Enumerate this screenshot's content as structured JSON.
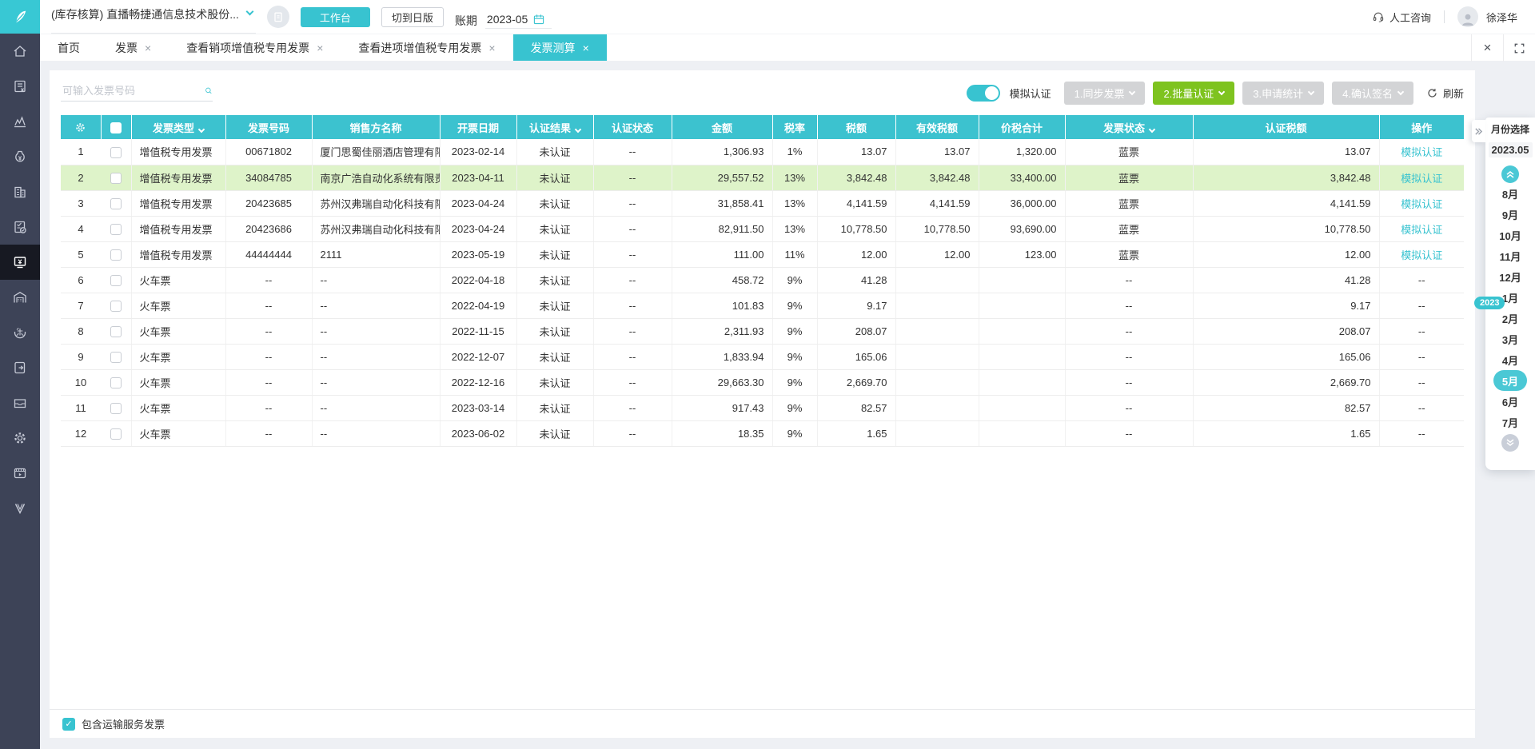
{
  "colors": {
    "primary": "#38c3d0",
    "green_button": "#7ec31f",
    "row_highlight": "#def3c9",
    "sidebar": "#3d4357"
  },
  "topbar": {
    "company": "(库存核算) 直播畅捷通信息技术股份...",
    "workbench": "工作台",
    "switch_version": "切到日版",
    "period_label": "账期",
    "period_value": "2023-05",
    "support": "人工咨询",
    "username": "徐泽华"
  },
  "tabs": [
    {
      "label": "首页",
      "closable": false,
      "active": false
    },
    {
      "label": "发票",
      "closable": true,
      "active": false
    },
    {
      "label": "查看销项增值税专用发票",
      "closable": true,
      "active": false
    },
    {
      "label": "查看进项增值税专用发票",
      "closable": true,
      "active": false
    },
    {
      "label": "发票测算",
      "closable": true,
      "active": true
    }
  ],
  "sidebar": {
    "items": [
      "home",
      "voucher",
      "report-chart",
      "money-bag",
      "company",
      "statement",
      "invoice",
      "warehouse",
      "tax",
      "carryover",
      "archive",
      "settings",
      "tutorial",
      "v-logo"
    ],
    "active": "invoice"
  },
  "toolbar": {
    "search_placeholder": "可输入发票号码",
    "toggle_label": "模拟认证",
    "toggle_on": true,
    "buttons": [
      {
        "label": "1.同步发票",
        "style": "disabled"
      },
      {
        "label": "2.批量认证",
        "style": "green"
      },
      {
        "label": "3.申请统计",
        "style": "disabled"
      },
      {
        "label": "4.确认签名",
        "style": "disabled"
      }
    ],
    "refresh": "刷新"
  },
  "table": {
    "headers": [
      {
        "label": "发票类型",
        "sort": true
      },
      {
        "label": "发票号码",
        "sort": false
      },
      {
        "label": "销售方名称",
        "sort": false
      },
      {
        "label": "开票日期",
        "sort": false
      },
      {
        "label": "认证结果",
        "sort": true
      },
      {
        "label": "认证状态",
        "sort": false
      },
      {
        "label": "金额",
        "sort": false
      },
      {
        "label": "税率",
        "sort": false
      },
      {
        "label": "税额",
        "sort": false
      },
      {
        "label": "有效税额",
        "sort": false
      },
      {
        "label": "价税合计",
        "sort": false
      },
      {
        "label": "发票状态",
        "sort": true
      },
      {
        "label": "认证税额",
        "sort": false
      },
      {
        "label": "操作",
        "sort": false
      }
    ],
    "rows": [
      {
        "seq": "1",
        "type": "增值税专用发票",
        "number": "00671802",
        "seller": "厦门思蜀佳丽酒店管理有限",
        "date": "2023-02-14",
        "result": "未认证",
        "status": "--",
        "amount": "1,306.93",
        "rate": "1%",
        "tax": "13.07",
        "valid_tax": "13.07",
        "total": "1,320.00",
        "invoice_status": "蓝票",
        "auth_tax": "13.07",
        "action": "模拟认证",
        "highlight": false
      },
      {
        "seq": "2",
        "type": "增值税专用发票",
        "number": "34084785",
        "seller": "南京广浩自动化系统有限责",
        "date": "2023-04-11",
        "result": "未认证",
        "status": "--",
        "amount": "29,557.52",
        "rate": "13%",
        "tax": "3,842.48",
        "valid_tax": "3,842.48",
        "total": "33,400.00",
        "invoice_status": "蓝票",
        "auth_tax": "3,842.48",
        "action": "模拟认证",
        "highlight": true
      },
      {
        "seq": "3",
        "type": "增值税专用发票",
        "number": "20423685",
        "seller": "苏州汉弗瑞自动化科技有限",
        "date": "2023-04-24",
        "result": "未认证",
        "status": "--",
        "amount": "31,858.41",
        "rate": "13%",
        "tax": "4,141.59",
        "valid_tax": "4,141.59",
        "total": "36,000.00",
        "invoice_status": "蓝票",
        "auth_tax": "4,141.59",
        "action": "模拟认证",
        "highlight": false
      },
      {
        "seq": "4",
        "type": "增值税专用发票",
        "number": "20423686",
        "seller": "苏州汉弗瑞自动化科技有限",
        "date": "2023-04-24",
        "result": "未认证",
        "status": "--",
        "amount": "82,911.50",
        "rate": "13%",
        "tax": "10,778.50",
        "valid_tax": "10,778.50",
        "total": "93,690.00",
        "invoice_status": "蓝票",
        "auth_tax": "10,778.50",
        "action": "模拟认证",
        "highlight": false
      },
      {
        "seq": "5",
        "type": "增值税专用发票",
        "number": "44444444",
        "seller": "2111",
        "date": "2023-05-19",
        "result": "未认证",
        "status": "--",
        "amount": "111.00",
        "rate": "11%",
        "tax": "12.00",
        "valid_tax": "12.00",
        "total": "123.00",
        "invoice_status": "蓝票",
        "auth_tax": "12.00",
        "action": "模拟认证",
        "highlight": false
      },
      {
        "seq": "6",
        "type": "火车票",
        "number": "--",
        "seller": "--",
        "date": "2022-04-18",
        "result": "未认证",
        "status": "--",
        "amount": "458.72",
        "rate": "9%",
        "tax": "41.28",
        "valid_tax": "",
        "total": "",
        "invoice_status": "--",
        "auth_tax": "41.28",
        "action": "--",
        "highlight": false
      },
      {
        "seq": "7",
        "type": "火车票",
        "number": "--",
        "seller": "--",
        "date": "2022-04-19",
        "result": "未认证",
        "status": "--",
        "amount": "101.83",
        "rate": "9%",
        "tax": "9.17",
        "valid_tax": "",
        "total": "",
        "invoice_status": "--",
        "auth_tax": "9.17",
        "action": "--",
        "highlight": false
      },
      {
        "seq": "8",
        "type": "火车票",
        "number": "--",
        "seller": "--",
        "date": "2022-11-15",
        "result": "未认证",
        "status": "--",
        "amount": "2,311.93",
        "rate": "9%",
        "tax": "208.07",
        "valid_tax": "",
        "total": "",
        "invoice_status": "--",
        "auth_tax": "208.07",
        "action": "--",
        "highlight": false
      },
      {
        "seq": "9",
        "type": "火车票",
        "number": "--",
        "seller": "--",
        "date": "2022-12-07",
        "result": "未认证",
        "status": "--",
        "amount": "1,833.94",
        "rate": "9%",
        "tax": "165.06",
        "valid_tax": "",
        "total": "",
        "invoice_status": "--",
        "auth_tax": "165.06",
        "action": "--",
        "highlight": false
      },
      {
        "seq": "10",
        "type": "火车票",
        "number": "--",
        "seller": "--",
        "date": "2022-12-16",
        "result": "未认证",
        "status": "--",
        "amount": "29,663.30",
        "rate": "9%",
        "tax": "2,669.70",
        "valid_tax": "",
        "total": "",
        "invoice_status": "--",
        "auth_tax": "2,669.70",
        "action": "--",
        "highlight": false
      },
      {
        "seq": "11",
        "type": "火车票",
        "number": "--",
        "seller": "--",
        "date": "2023-03-14",
        "result": "未认证",
        "status": "--",
        "amount": "917.43",
        "rate": "9%",
        "tax": "82.57",
        "valid_tax": "",
        "total": "",
        "invoice_status": "--",
        "auth_tax": "82.57",
        "action": "--",
        "highlight": false
      },
      {
        "seq": "12",
        "type": "火车票",
        "number": "--",
        "seller": "--",
        "date": "2023-06-02",
        "result": "未认证",
        "status": "--",
        "amount": "18.35",
        "rate": "9%",
        "tax": "1.65",
        "valid_tax": "",
        "total": "",
        "invoice_status": "--",
        "auth_tax": "1.65",
        "action": "--",
        "highlight": false
      }
    ]
  },
  "footer": {
    "checkbox_label": "包含运输服务发票",
    "checked": true
  },
  "month_panel": {
    "title": "月份选择",
    "current": "2023.05",
    "year_badge": "2023",
    "months_top": [
      "8月",
      "9月",
      "10月",
      "11月",
      "12月"
    ],
    "months_bottom": [
      "1月",
      "2月",
      "3月",
      "4月",
      "5月",
      "6月",
      "7月"
    ],
    "selected": "5月"
  }
}
